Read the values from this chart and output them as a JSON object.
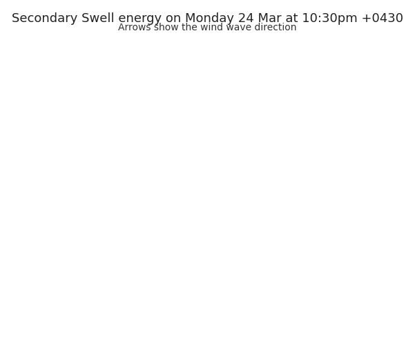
{
  "title": "Secondary Swell energy on Monday 24 Mar at 10:30pm +0430",
  "subtitle": "Arrows show the wind wave direction",
  "title_fontsize": 13,
  "subtitle_fontsize": 10,
  "title_color": "#222222",
  "subtitle_color": "#333333",
  "background_color": "#ffffff",
  "map_bg": "#aaaaaa",
  "border_color": "#000000",
  "water_color": "#000000",
  "figwidth": 6.01,
  "figheight": 5.1,
  "dpi": 100,
  "lon_min": 44,
  "lon_max": 80,
  "lat_min": 22,
  "lat_max": 46
}
